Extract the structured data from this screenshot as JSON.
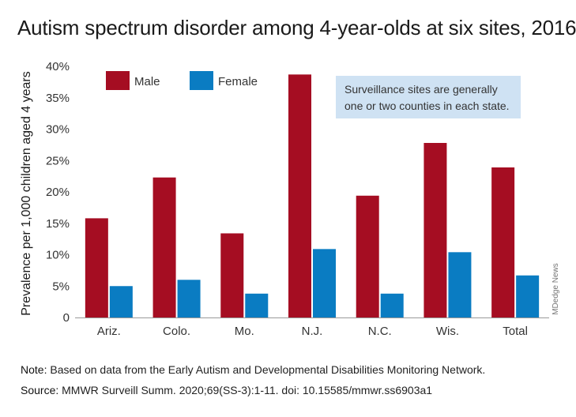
{
  "title": "Autism spectrum disorder among 4-year-olds at six sites, 2016",
  "note_box": {
    "line1": "Surveillance sites are generally",
    "line2": "one or two counties in each state."
  },
  "watermark": "MDedge News",
  "footnote": {
    "note_label": "Note:",
    "note_text": "Based on data from the Early Autism and Developmental Disabilities Monitoring Network.",
    "source_label": "Source:",
    "source_text": "MMWR Surveill Summ. 2020;69(SS-3):1-11. doi: 10.15585/mmwr.ss6903a1"
  },
  "colors": {
    "male": "#a50d22",
    "female": "#0a7cc2",
    "note_box": "#cfe2f3",
    "axis": "#999999"
  },
  "chart_data": {
    "type": "bar",
    "title": "Autism spectrum disorder among 4-year-olds at six sites, 2016",
    "xlabel": "",
    "ylabel": "Prevalence per 1,000 children aged 4 years",
    "categories": [
      "Ariz.",
      "Colo.",
      "Mo.",
      "N.J.",
      "N.C.",
      "Wis.",
      "Total"
    ],
    "series": [
      {
        "name": "Male",
        "values": [
          15.8,
          22.3,
          13.4,
          38.7,
          19.4,
          27.8,
          23.9
        ]
      },
      {
        "name": "Female",
        "values": [
          5.0,
          6.0,
          3.8,
          10.9,
          3.8,
          10.4,
          6.7
        ]
      }
    ],
    "ylim": [
      0,
      40
    ],
    "yticks": [
      0,
      5,
      10,
      15,
      20,
      25,
      30,
      35,
      40
    ],
    "ytick_labels": [
      "0",
      "5%",
      "10%",
      "15%",
      "20%",
      "25%",
      "30%",
      "35%",
      "40%"
    ],
    "grid": false,
    "legend_position": "top-left"
  }
}
